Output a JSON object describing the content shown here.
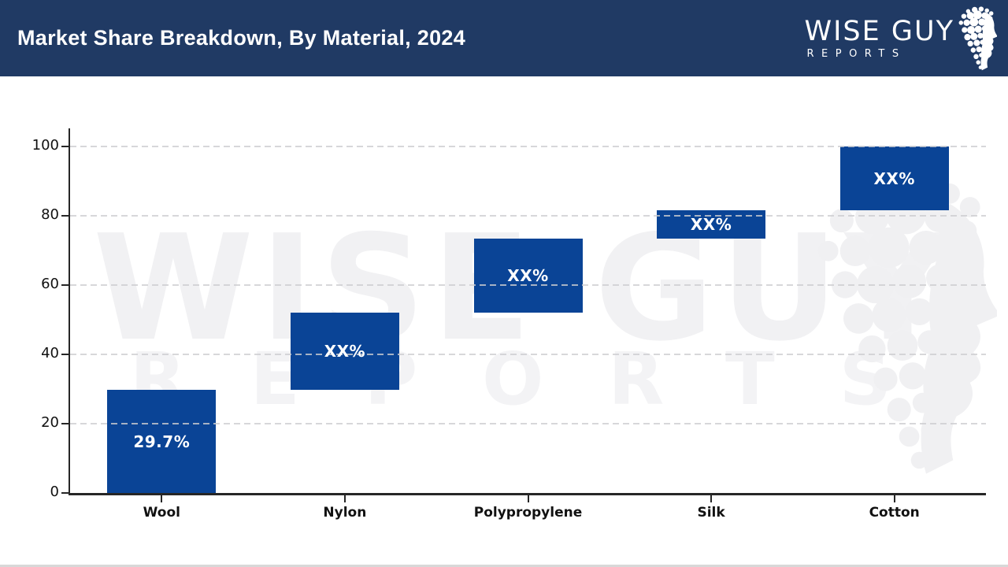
{
  "header": {
    "title": "Market Share Breakdown, By Material, 2024",
    "logo": {
      "line1": "WISE GUY",
      "line2": "REPORTS"
    }
  },
  "watermark": {
    "line1": "WISE GUY",
    "line2": "REPORTS"
  },
  "colors": {
    "header_bg": "#203a64",
    "bar": "#0a4496",
    "bar_label_text": "#ffffff",
    "axis": "#262626",
    "gridline": "#d3d3d5",
    "watermark": "#f1f1f3",
    "footer_line": "#d8d8d8"
  },
  "chart_data": {
    "type": "bar",
    "subtype": "waterfall",
    "title": "Market Share Breakdown, By Material, 2024",
    "xlabel": "",
    "ylabel": "",
    "categories": [
      "Wool",
      "Nylon",
      "Polypropylene",
      "Silk",
      "Cotton"
    ],
    "segments": [
      {
        "category": "Wool",
        "start": 0,
        "end": 29.7,
        "size": 29.7,
        "label": "29.7%"
      },
      {
        "category": "Nylon",
        "start": 29.7,
        "end": 52.0,
        "size": 22.3,
        "label": "XX%"
      },
      {
        "category": "Polypropylene",
        "start": 52.0,
        "end": 73.5,
        "size": 21.5,
        "label": "XX%"
      },
      {
        "category": "Silk",
        "start": 73.5,
        "end": 81.7,
        "size": 8.2,
        "label": "XX%"
      },
      {
        "category": "Cotton",
        "start": 81.7,
        "end": 100,
        "size": 18.3,
        "label": "XX%"
      }
    ],
    "yticks": [
      0,
      20,
      40,
      60,
      80,
      100
    ],
    "ylim": [
      0,
      105
    ],
    "grid": "horizontal-dashed",
    "legend": "none"
  }
}
